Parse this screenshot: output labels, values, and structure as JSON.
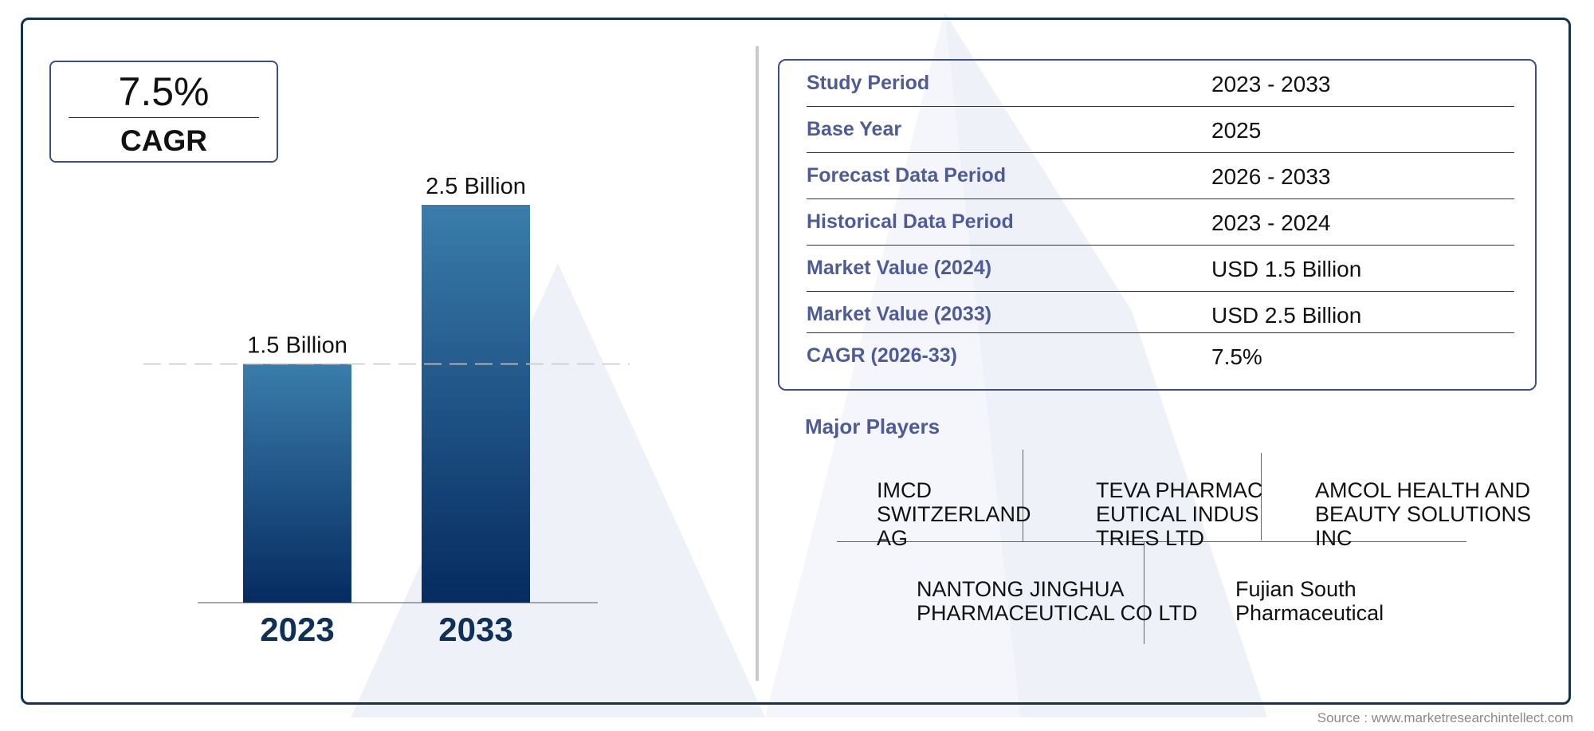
{
  "colors": {
    "frame": "#14324d",
    "bar_top": "#3a7dab",
    "bar_bottom": "#062b61",
    "label_blue": "#4d5c97",
    "year_label": "#0f3057"
  },
  "cagr_badge": {
    "value": "7.5%",
    "label": "CAGR"
  },
  "chart_data": {
    "type": "bar",
    "categories": [
      "2023",
      "2033"
    ],
    "values": [
      1.5,
      2.5
    ],
    "data_labels": [
      "1.5 Billion",
      "2.5 Billion"
    ],
    "unit": "Billion",
    "title": "",
    "xlabel": "",
    "ylabel": "",
    "ylim": [
      0,
      2.5
    ],
    "grid": false,
    "reference_line": 1.5
  },
  "info_table": [
    {
      "key": "Study Period",
      "value": "2023 - 2033"
    },
    {
      "key": "Base Year",
      "value": "2025"
    },
    {
      "key": "Forecast Data Period",
      "value": "2026 - 2033"
    },
    {
      "key": "Historical Data Period",
      "value": "2023 - 2024"
    },
    {
      "key": "Market Value (2024)",
      "value": "USD 1.5 Billion"
    },
    {
      "key": "Market Value (2033)",
      "value": "USD 2.5 Billion"
    },
    {
      "key": "CAGR (2026-33)",
      "value": "7.5%"
    }
  ],
  "major_players": {
    "title": "Major Players",
    "names": [
      "IMCD SWITZERLAND AG",
      "TEVA PHARMACEUTICAL INDUSTRIES LTD",
      "AMCOL HEALTH AND BEAUTY SOLUTIONS INC",
      "NANTONG JINGHUA PHARMACEUTICAL CO LTD",
      "Fujian South Pharmaceutical"
    ]
  },
  "source": "Source : www.marketresearchintellect.com"
}
